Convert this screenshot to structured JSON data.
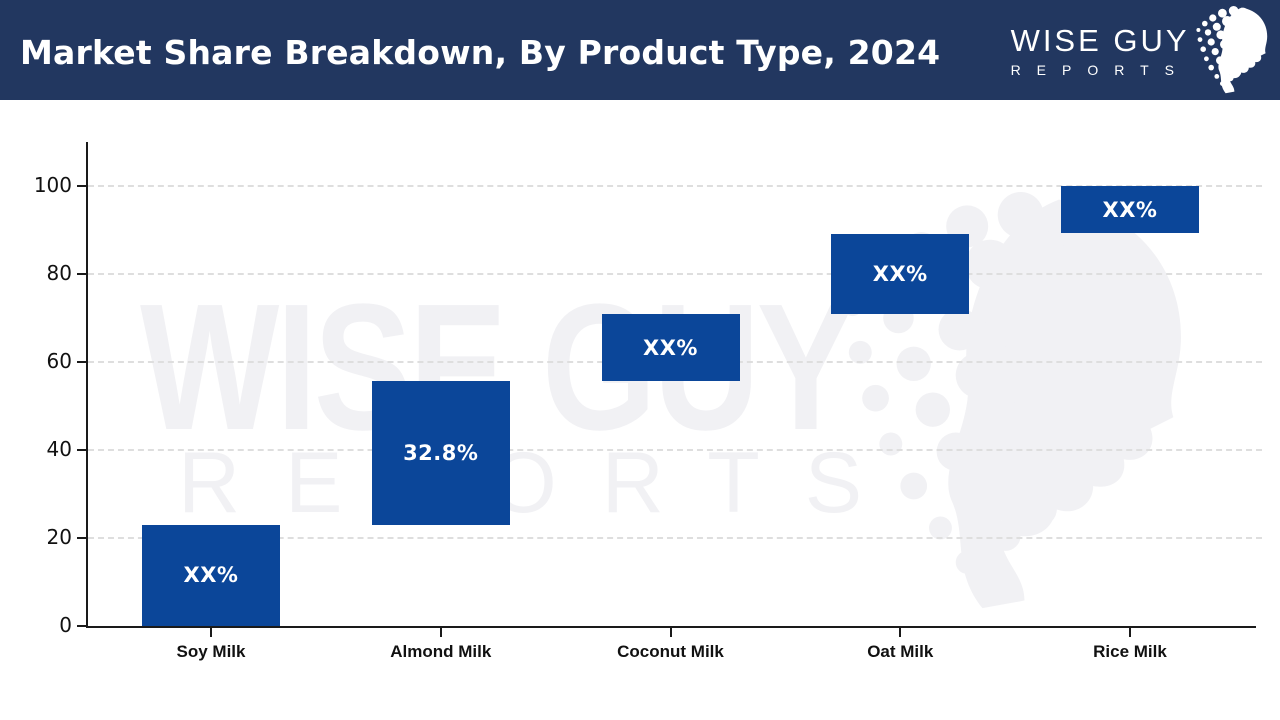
{
  "header": {
    "title": "Market Share Breakdown, By Product Type, 2024",
    "logo": {
      "wordmark": "WISE GUY",
      "subtitle": "REPORTS"
    }
  },
  "watermark": {
    "wordmark": "WISE GUY",
    "subtitle": "REPORTS"
  },
  "chart_data": {
    "type": "bar",
    "subtype": "waterfall",
    "title": "Market Share Breakdown, By Product Type, 2024",
    "categories": [
      "Soy Milk",
      "Almond Milk",
      "Coconut Milk",
      "Oat Milk",
      "Rice Milk"
    ],
    "segments": [
      {
        "category": "Soy Milk",
        "start": 0,
        "end": 23.0,
        "label": "XX%"
      },
      {
        "category": "Almond Milk",
        "start": 22.9,
        "end": 55.7,
        "label": "32.8%"
      },
      {
        "category": "Coconut Milk",
        "start": 55.7,
        "end": 70.8,
        "label": "XX%"
      },
      {
        "category": "Oat Milk",
        "start": 71.0,
        "end": 89.0,
        "label": "XX%"
      },
      {
        "category": "Rice Milk",
        "start": 89.3,
        "end": 100.0,
        "label": "XX%"
      }
    ],
    "xlabel": "",
    "ylabel": "",
    "ylim": [
      0,
      100
    ],
    "yticks": [
      0,
      20,
      40,
      60,
      80,
      100
    ],
    "grid": "horizontal-dashed",
    "legend": "none",
    "colors": {
      "bar": "#0b4699",
      "bar_label": "#ffffff",
      "axis": "#1a1a1a",
      "grid": "#dedede",
      "tick_label": "#111111",
      "header_bg": "#223760",
      "header_text": "#ffffff",
      "watermark": "#f1f1f4"
    }
  }
}
